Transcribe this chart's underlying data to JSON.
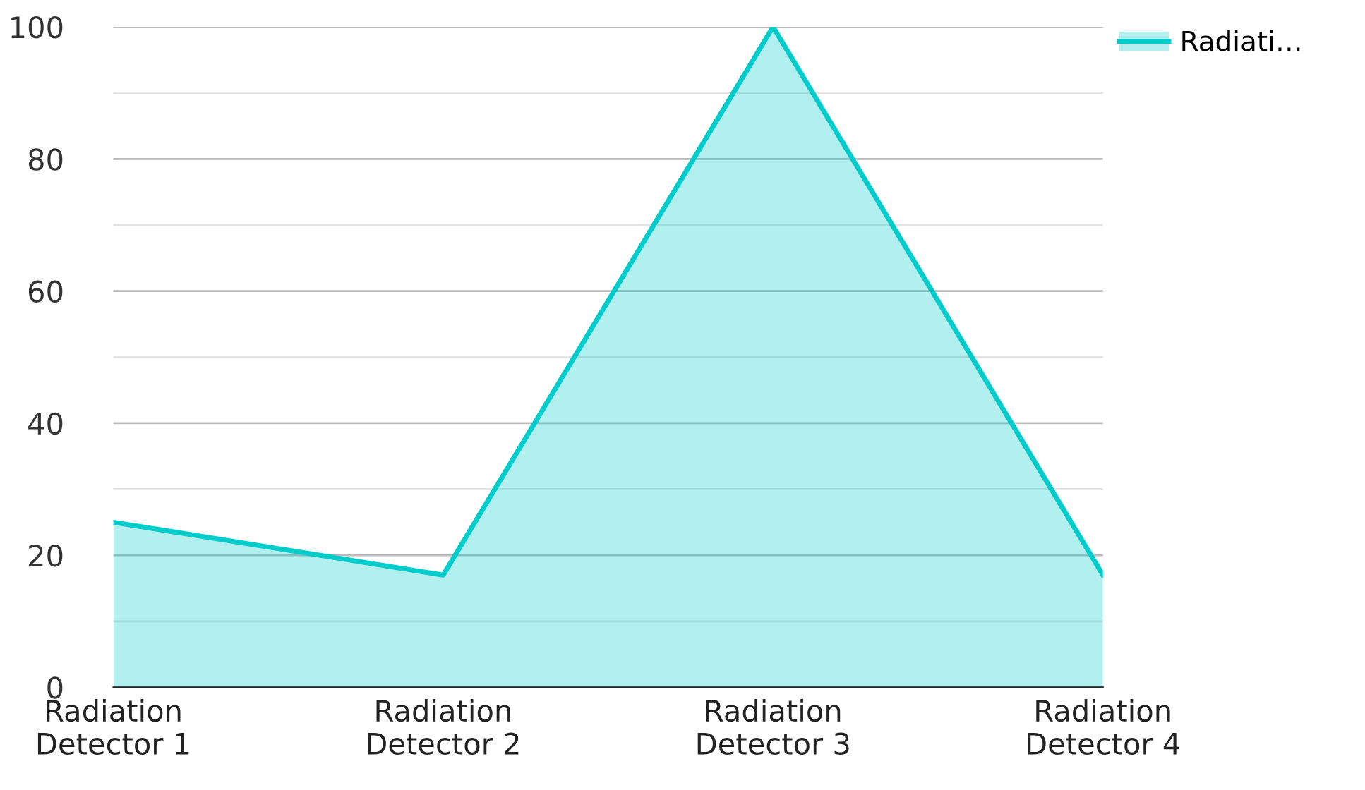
{
  "chart_data": {
    "type": "area",
    "categories": [
      "Radiation Detector 1",
      "Radiation Detector 2",
      "Radiation Detector 3",
      "Radiation Detector 4"
    ],
    "series": [
      {
        "name": "Radiati…",
        "color": "#00cccc",
        "values": [
          25,
          17,
          100,
          17
        ]
      }
    ],
    "ylim": [
      0,
      100
    ],
    "yticks": [
      0,
      {
        "value": 10,
        "label": null
      },
      20,
      {
        "value": 30,
        "label": null
      },
      40,
      {
        "value": 50,
        "label": null
      },
      60,
      {
        "value": 70,
        "label": null
      },
      80,
      {
        "value": 90,
        "label": null
      },
      100
    ],
    "grid": "y",
    "legend": "top right",
    "marker": "none",
    "line_style": "solid"
  }
}
